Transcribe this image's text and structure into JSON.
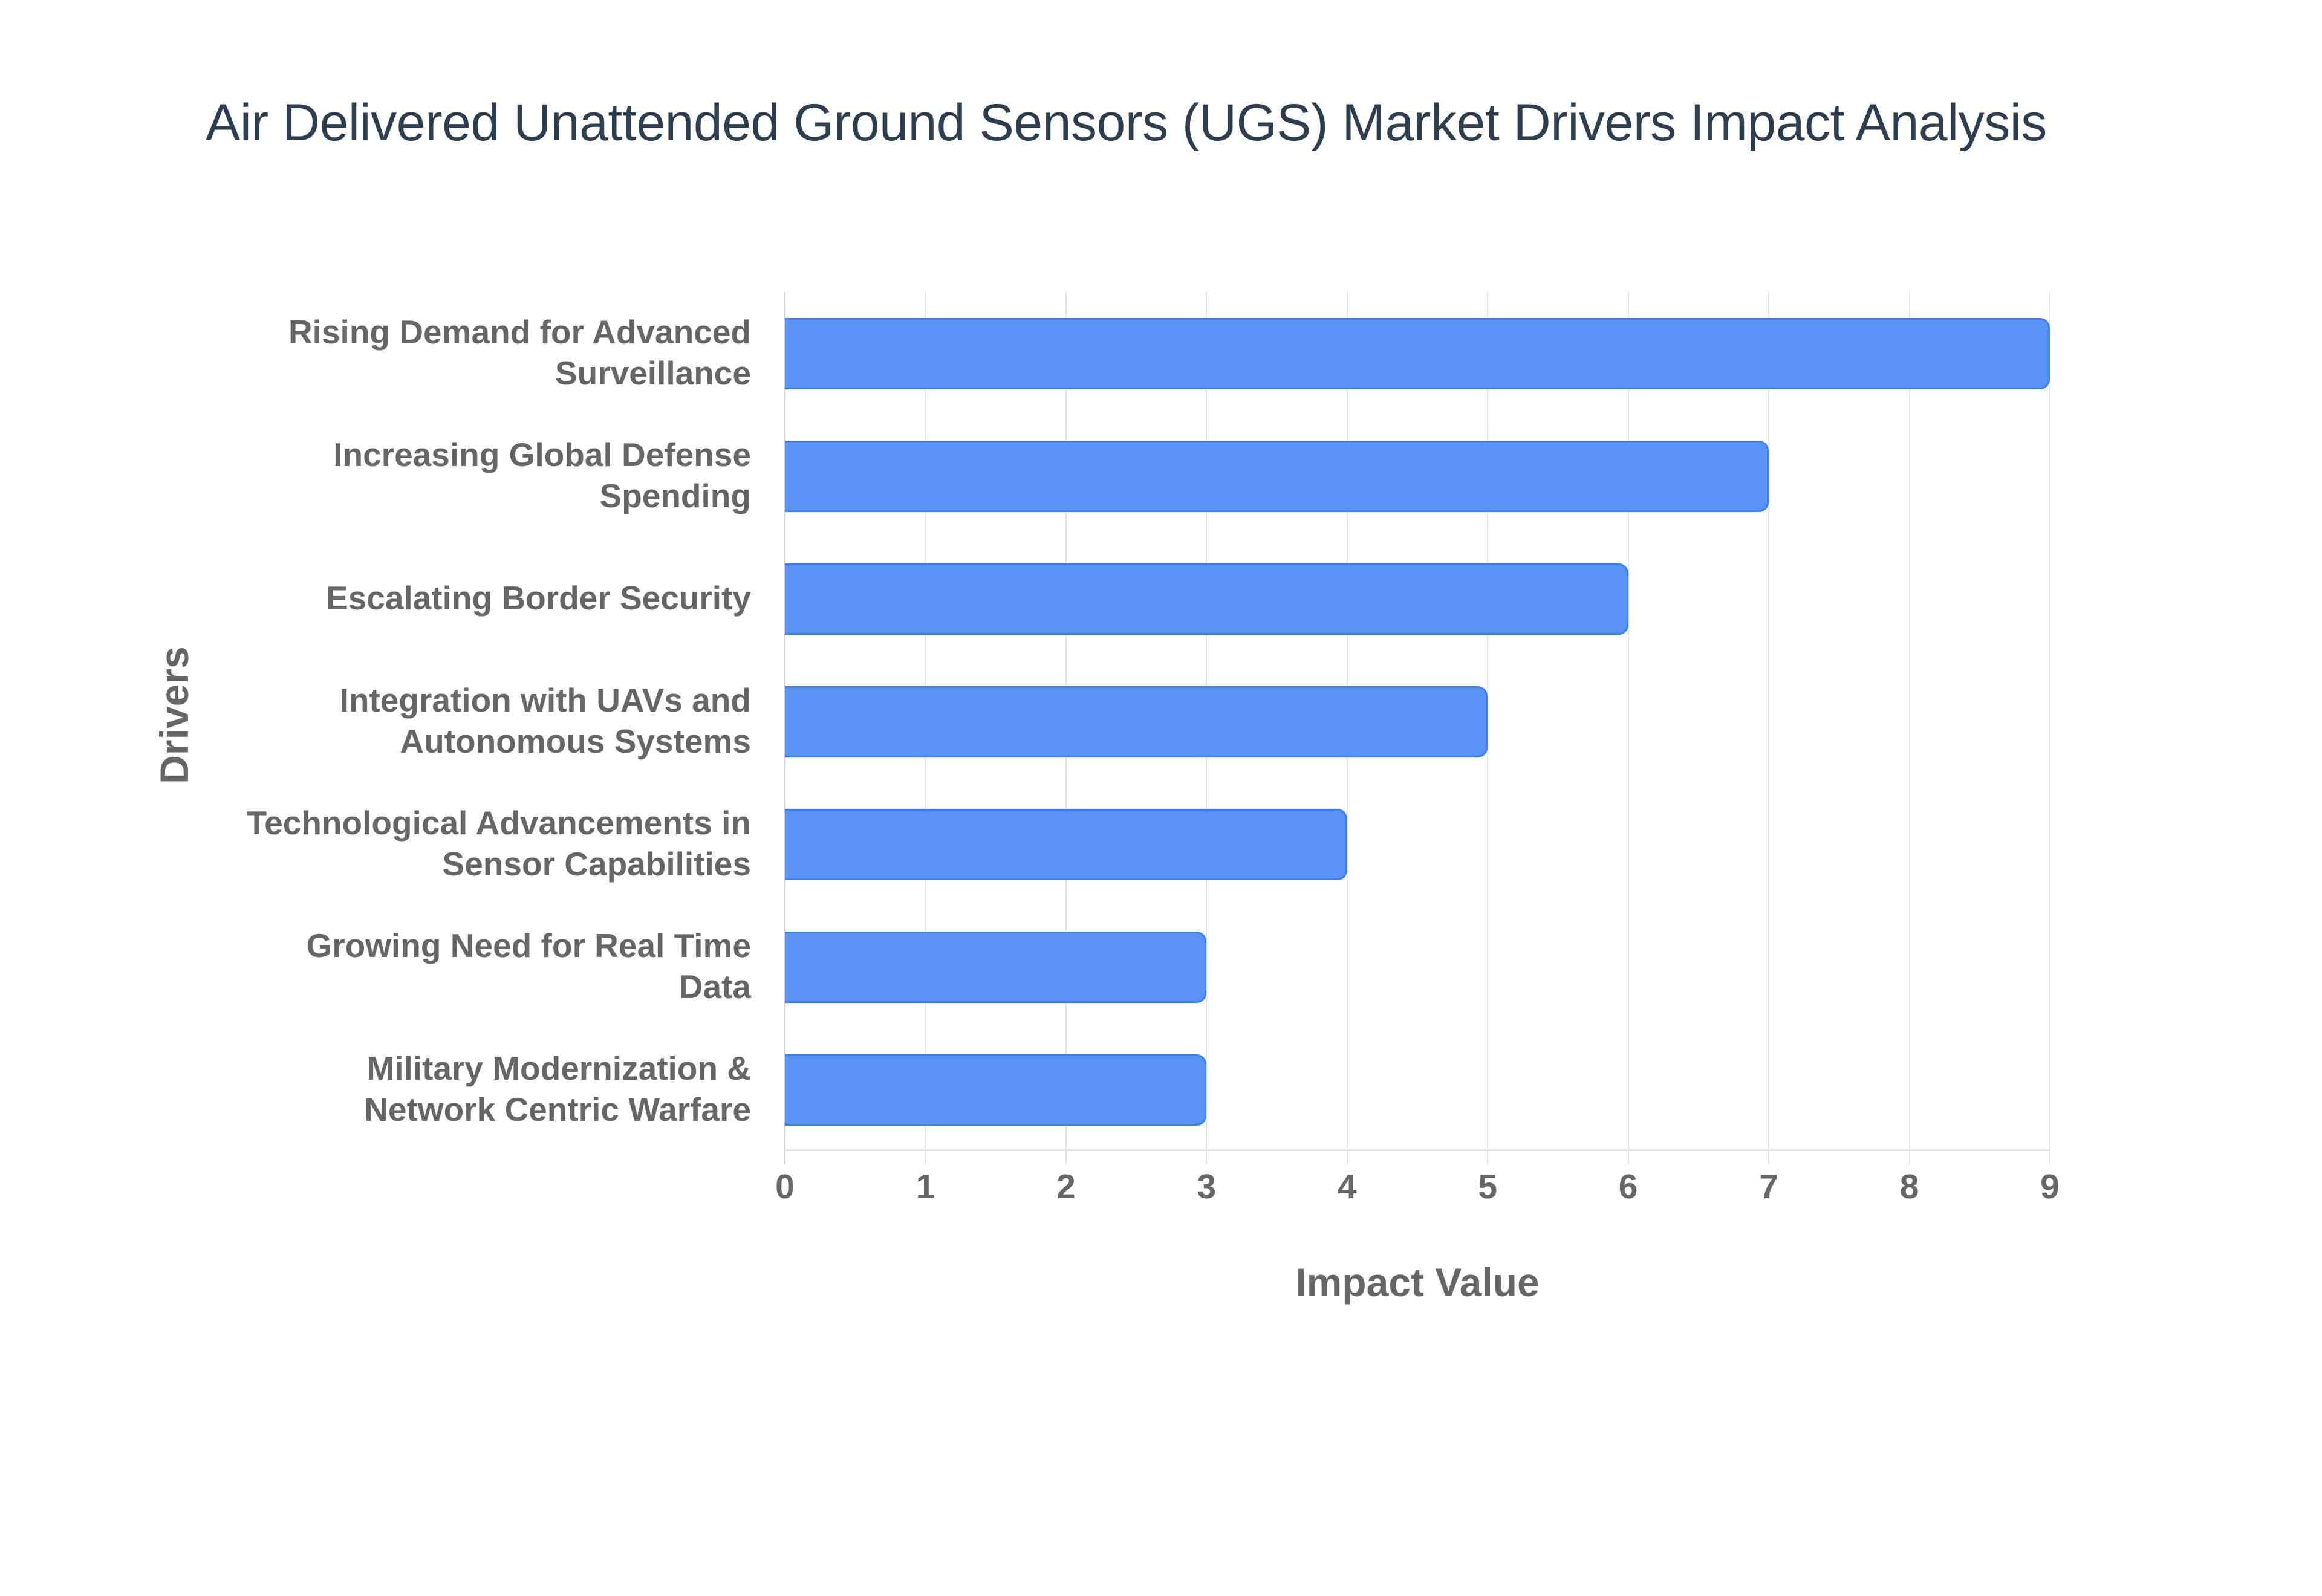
{
  "header": {
    "title": "Air Delivered Unattended Ground Sensors (UGS) Market Drivers Impact Analysis"
  },
  "axes": {
    "x_title": "Impact Value",
    "y_title": "Drivers",
    "x_ticks": [
      "0",
      "1",
      "2",
      "3",
      "4",
      "5",
      "6",
      "7",
      "8",
      "9"
    ]
  },
  "colors": {
    "bar_fill": "#5b93f5",
    "bar_border": "#3b7ff0",
    "title": "#2c3e50",
    "axis_text": "#666666",
    "grid": "#e6e6e6"
  },
  "chart_data": {
    "type": "bar",
    "orientation": "horizontal",
    "title": "Air Delivered Unattended Ground Sensors (UGS) Market Drivers Impact Analysis",
    "xlabel": "Impact Value",
    "ylabel": "Drivers",
    "xlim": [
      0,
      9
    ],
    "grid": true,
    "legend": null,
    "categories": [
      "Rising Demand for Advanced Surveillance",
      "Increasing Global Defense Spending",
      "Escalating Border Security",
      "Integration with UAVs and Autonomous Systems",
      "Technological Advancements in Sensor Capabilities",
      "Growing Need for Real Time Data",
      "Military Modernization & Network Centric Warfare"
    ],
    "values": [
      9,
      7,
      6,
      5,
      4,
      3,
      3
    ]
  },
  "labels": [
    {
      "line1": "Rising Demand for Advanced",
      "line2": "Surveillance"
    },
    {
      "line1": "Increasing Global Defense",
      "line2": "Spending"
    },
    {
      "line1": "Escalating Border Security",
      "line2": ""
    },
    {
      "line1": "Integration with UAVs and",
      "line2": "Autonomous Systems"
    },
    {
      "line1": "Technological Advancements in",
      "line2": "Sensor Capabilities"
    },
    {
      "line1": "Growing Need for Real Time",
      "line2": "Data"
    },
    {
      "line1": "Military Modernization &",
      "line2": "Network Centric Warfare"
    }
  ]
}
